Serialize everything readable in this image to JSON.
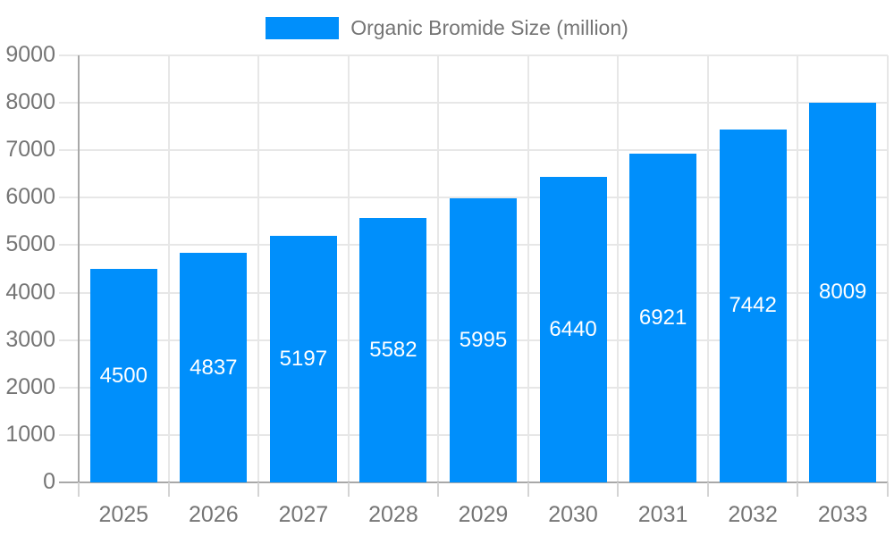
{
  "legend": {
    "label": "Organic Bromide Size (million)"
  },
  "colors": {
    "bar": "#008FFB",
    "grid": "#e7e7e7",
    "axis": "#a8a8a8",
    "tick": "#d4d4d4",
    "tick_label": "#757575",
    "bar_label": "#ffffff"
  },
  "chart_data": {
    "type": "bar",
    "title": "Organic Bromide Size (million)",
    "categories": [
      "2025",
      "2026",
      "2027",
      "2028",
      "2029",
      "2030",
      "2031",
      "2032",
      "2033"
    ],
    "series": [
      {
        "name": "Organic Bromide Size (million)",
        "values": [
          4500,
          4837,
          5197,
          5582,
          5995,
          6440,
          6921,
          7442,
          8009
        ]
      }
    ],
    "xlabel": "",
    "ylabel": "",
    "ylim": [
      0,
      9000
    ],
    "y_ticks": [
      0,
      1000,
      2000,
      3000,
      4000,
      5000,
      6000,
      7000,
      8000,
      9000
    ],
    "grid": true,
    "legend_position": "top",
    "bar_value_labels": "inside-center"
  }
}
